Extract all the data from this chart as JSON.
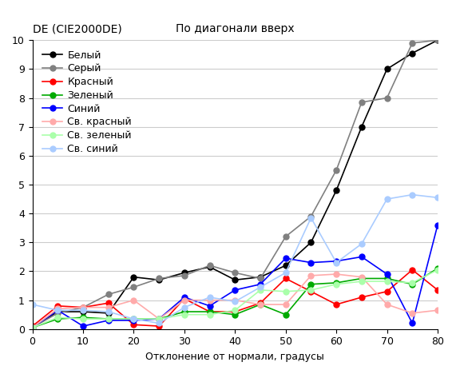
{
  "title_left": "DE (CIE2000DE)",
  "title_right": "По диагонали вверх",
  "xlabel": "Отклонение от нормали, градусы",
  "ylabel": "",
  "xlim": [
    0,
    80
  ],
  "ylim": [
    0,
    10
  ],
  "xticks": [
    0,
    10,
    20,
    30,
    40,
    50,
    60,
    70,
    80
  ],
  "yticks": [
    0,
    1,
    2,
    3,
    4,
    5,
    6,
    7,
    8,
    9,
    10
  ],
  "series": [
    {
      "label": "Белый",
      "color": "#000000",
      "x": [
        0,
        5,
        10,
        15,
        20,
        25,
        30,
        35,
        40,
        45,
        50,
        55,
        60,
        65,
        70,
        75,
        80
      ],
      "y": [
        0.05,
        0.6,
        0.6,
        0.55,
        1.8,
        1.7,
        1.95,
        2.15,
        1.7,
        1.8,
        2.2,
        3.0,
        4.8,
        7.0,
        9.0,
        9.55,
        10.0
      ]
    },
    {
      "label": "Серый",
      "color": "#808080",
      "x": [
        0,
        5,
        10,
        15,
        20,
        25,
        30,
        35,
        40,
        45,
        50,
        55,
        60,
        65,
        70,
        75,
        80
      ],
      "y": [
        0.05,
        0.55,
        0.75,
        1.2,
        1.45,
        1.75,
        1.85,
        2.2,
        1.95,
        1.75,
        3.2,
        3.9,
        5.5,
        7.85,
        8.0,
        9.9,
        10.0
      ]
    },
    {
      "label": "Красный",
      "color": "#ff0000",
      "x": [
        0,
        5,
        10,
        15,
        20,
        25,
        30,
        35,
        40,
        45,
        50,
        55,
        60,
        65,
        70,
        75,
        80
      ],
      "y": [
        0.1,
        0.8,
        0.75,
        0.9,
        0.15,
        0.1,
        1.05,
        0.6,
        0.6,
        0.9,
        1.75,
        1.3,
        0.85,
        1.1,
        1.3,
        2.05,
        1.35
      ]
    },
    {
      "label": "Зеленый",
      "color": "#00aa00",
      "x": [
        0,
        5,
        10,
        15,
        20,
        25,
        30,
        35,
        40,
        45,
        50,
        55,
        60,
        65,
        70,
        75,
        80
      ],
      "y": [
        0.05,
        0.35,
        0.4,
        0.35,
        0.35,
        0.35,
        0.6,
        0.6,
        0.5,
        0.85,
        0.5,
        1.55,
        1.6,
        1.75,
        1.75,
        1.55,
        2.1
      ]
    },
    {
      "label": "Синий",
      "color": "#0000ff",
      "x": [
        0,
        5,
        10,
        15,
        20,
        25,
        30,
        35,
        40,
        45,
        50,
        55,
        60,
        65,
        70,
        75,
        80
      ],
      "y": [
        0.05,
        0.65,
        0.1,
        0.3,
        0.3,
        0.35,
        1.1,
        0.8,
        1.35,
        1.55,
        2.45,
        2.3,
        2.35,
        2.5,
        1.9,
        0.2,
        3.6
      ]
    },
    {
      "label": "Св. красный",
      "color": "#ffaaaa",
      "x": [
        0,
        5,
        10,
        15,
        20,
        25,
        30,
        35,
        40,
        45,
        50,
        55,
        60,
        65,
        70,
        75,
        80
      ],
      "y": [
        0.05,
        0.7,
        0.75,
        0.75,
        1.0,
        0.35,
        1.0,
        1.0,
        1.0,
        0.85,
        0.85,
        1.85,
        1.9,
        1.8,
        0.85,
        0.55,
        0.65
      ]
    },
    {
      "label": "Св. зеленый",
      "color": "#aaffaa",
      "x": [
        0,
        5,
        10,
        15,
        20,
        25,
        30,
        35,
        40,
        45,
        50,
        55,
        60,
        65,
        70,
        75,
        80
      ],
      "y": [
        0.05,
        0.4,
        0.35,
        0.35,
        0.35,
        0.35,
        0.5,
        0.5,
        0.65,
        1.35,
        1.3,
        1.35,
        1.55,
        1.65,
        1.65,
        1.6,
        2.05
      ]
    },
    {
      "label": "Св. синий",
      "color": "#aaccff",
      "x": [
        0,
        5,
        10,
        15,
        20,
        25,
        30,
        35,
        40,
        45,
        50,
        55,
        60,
        65,
        70,
        75,
        80
      ],
      "y": [
        0.85,
        0.65,
        0.65,
        0.6,
        0.35,
        0.2,
        0.75,
        1.1,
        0.95,
        1.45,
        1.95,
        3.85,
        2.3,
        2.95,
        4.5,
        4.65,
        4.55
      ]
    }
  ],
  "background_color": "#ffffff",
  "grid_color": "#cccccc",
  "marker_size": 5,
  "line_width": 1.2,
  "title_fontsize": 10,
  "axis_fontsize": 9,
  "legend_fontsize": 9,
  "tick_fontsize": 9
}
